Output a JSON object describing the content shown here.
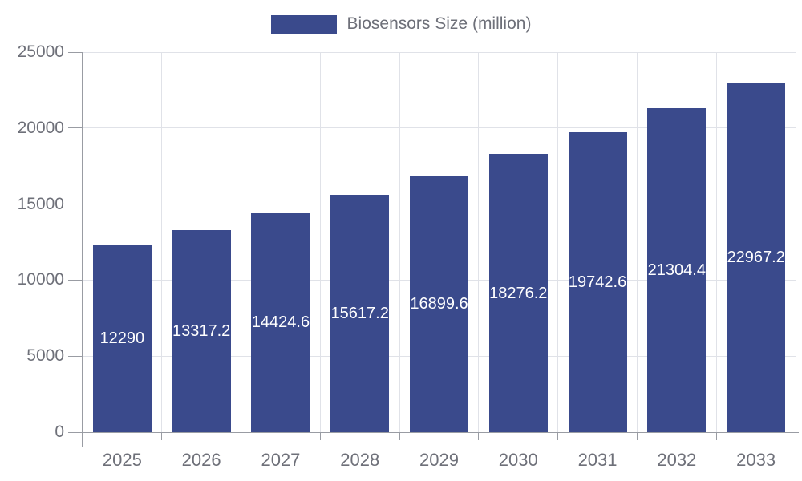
{
  "chart_data": {
    "type": "bar",
    "title": "",
    "legend": "Biosensors Size (million)",
    "legend_position": "top",
    "categories": [
      "2025",
      "2026",
      "2027",
      "2028",
      "2029",
      "2030",
      "2031",
      "2032",
      "2033"
    ],
    "series": [
      {
        "name": "Biosensors Size (million)",
        "values": [
          12290,
          13317.2,
          14424.6,
          15617.2,
          16899.6,
          18276.2,
          19742.6,
          21304.4,
          22967.2
        ]
      }
    ],
    "bar_labels": [
      "12290",
      "13317.2",
      "14424.6",
      "15617.2",
      "16899.6",
      "18276.2",
      "19742.6",
      "21304.4",
      "22967.2"
    ],
    "xlabel": "",
    "ylabel": "",
    "ylim": [
      0,
      25000
    ],
    "y_ticks": [
      "0",
      "5000",
      "10000",
      "15000",
      "20000",
      "25000"
    ],
    "grid": true,
    "colors": {
      "bar": "#3A4A8C",
      "bar_label": "#FFFFFF",
      "axis_text": "#6E7079",
      "axis_line": "#999CA3",
      "gridline": "#E0E2E8",
      "background": "#FFFFFF"
    }
  }
}
